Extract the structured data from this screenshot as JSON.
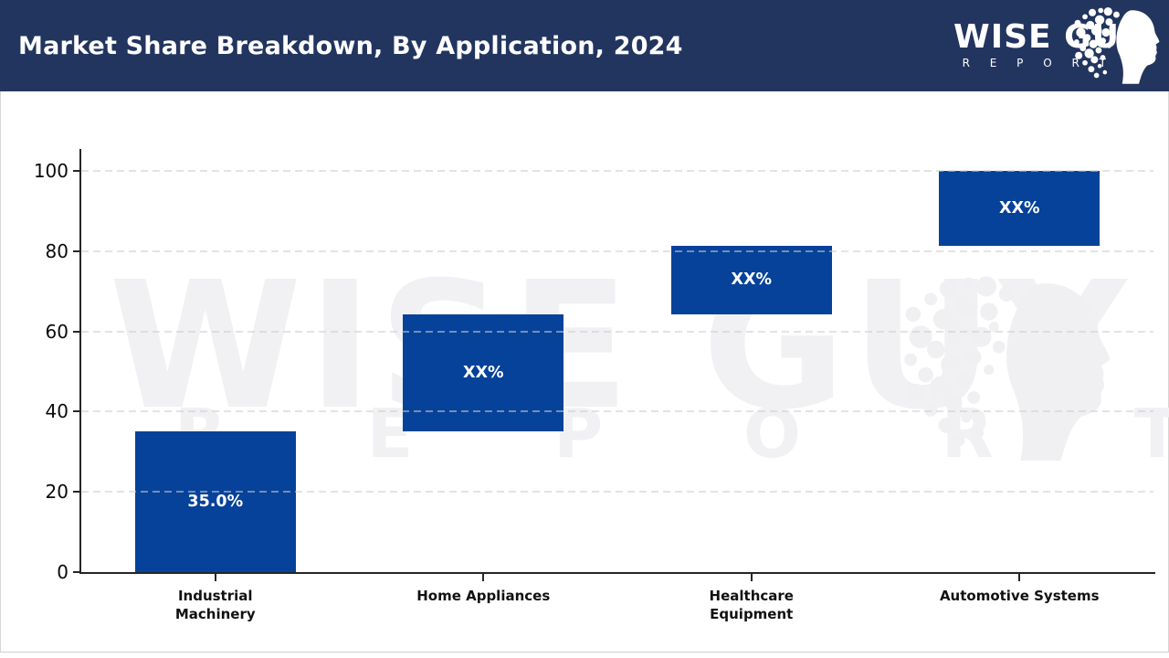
{
  "header": {
    "title": "Market Share Breakdown, By Application, 2024",
    "logo": {
      "name": "WISE GUY",
      "sub": "R E P O R T S"
    }
  },
  "watermark": {
    "line1": "WISE GUY",
    "line2": "R E P O R T S"
  },
  "chart_data": {
    "type": "bar",
    "variant": "floating-waterfall",
    "title": "Market Share Breakdown, By Application, 2024",
    "categories": [
      "Industrial Machinery",
      "Home Appliances",
      "Healthcare Equipment",
      "Automotive Systems"
    ],
    "category_lines": [
      [
        "Industrial",
        "Machinery"
      ],
      [
        "Home Appliances"
      ],
      [
        "Healthcare",
        "Equipment"
      ],
      [
        "Automotive Systems"
      ]
    ],
    "segments": [
      {
        "category": "Industrial Machinery",
        "start": 0,
        "end": 35,
        "label": "35.0%"
      },
      {
        "category": "Home Appliances",
        "start": 35,
        "end": 64.2,
        "label": "XX%"
      },
      {
        "category": "Healthcare Equipment",
        "start": 64.2,
        "end": 81.4,
        "label": "XX%"
      },
      {
        "category": "Automotive Systems",
        "start": 81.4,
        "end": 100,
        "label": "XX%"
      }
    ],
    "ylim": [
      0,
      100
    ],
    "yticks": [
      0,
      20,
      40,
      60,
      80,
      100
    ],
    "xlabel": "",
    "ylabel": "",
    "grid": "horizontal-dashed",
    "legend": "none",
    "bar_label_color": "#ffffff"
  },
  "colors": {
    "header_bg": "#22355f",
    "bar": "#06429a",
    "grid": "#d6d6d6",
    "axis": "#262626",
    "watermark": "#f1f1f4",
    "title_text": "#ffffff"
  }
}
